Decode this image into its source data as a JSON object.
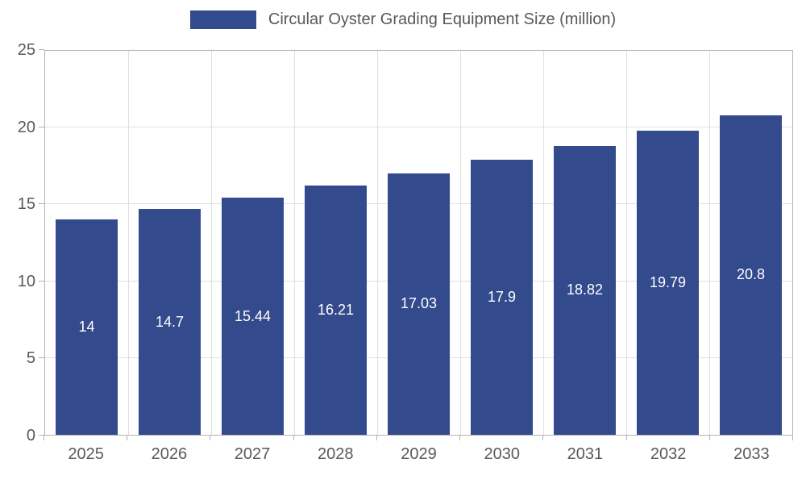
{
  "chart_data": {
    "type": "bar",
    "title": "Circular Oyster Grading Equipment Size (million)",
    "categories": [
      "2025",
      "2026",
      "2027",
      "2028",
      "2029",
      "2030",
      "2031",
      "2032",
      "2033"
    ],
    "values": [
      14,
      14.7,
      15.44,
      16.21,
      17.03,
      17.9,
      18.82,
      19.79,
      20.8
    ],
    "xlabel": "",
    "ylabel": "",
    "ylim": [
      0,
      25
    ],
    "yticks": [
      0,
      5,
      10,
      15,
      20,
      25
    ],
    "grid": true,
    "legend_position": "top",
    "bar_color": "#334a8c",
    "value_label_color": "#ffffff",
    "axis_text_color": "#595959",
    "grid_color": "#e0e0e0",
    "border_color": "#b3b3b3",
    "background_color": "#ffffff"
  }
}
